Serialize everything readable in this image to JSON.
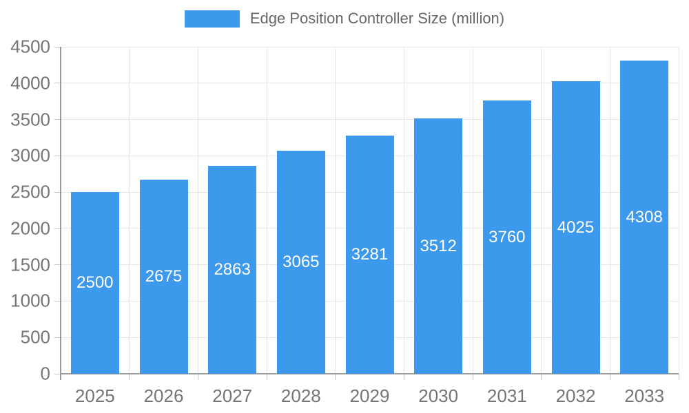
{
  "legend": {
    "label": "Edge Position Controller Size (million)",
    "swatch_color": "#3C99EC"
  },
  "chart_data": {
    "type": "bar",
    "title": "Edge Position Controller Size (million)",
    "categories": [
      "2025",
      "2026",
      "2027",
      "2028",
      "2029",
      "2030",
      "2031",
      "2032",
      "2033"
    ],
    "values": [
      2500,
      2675,
      2863,
      3065,
      3281,
      3512,
      3760,
      4025,
      4308
    ],
    "value_labels": [
      "2500",
      "2675",
      "2863",
      "3065",
      "3281",
      "3512",
      "3760",
      "4025",
      "4308"
    ],
    "xlabel": "",
    "ylabel": "",
    "ylim": [
      0,
      4500
    ],
    "yticks": [
      0,
      500,
      1000,
      1500,
      2000,
      2500,
      3000,
      3500,
      4000,
      4500
    ],
    "ytick_labels": [
      "0",
      "500",
      "1000",
      "1500",
      "2000",
      "2500",
      "3000",
      "3500",
      "4000",
      "4500"
    ],
    "grid": "horizontal-and-vertical",
    "legend_position": "top-center",
    "colors": {
      "bar": "#3C99EC",
      "value_label": "#ffffff",
      "axis_label": "#757575",
      "legend_text": "#666666",
      "gridline": "#e5e5e5",
      "axis_line": "#9a9a9a",
      "background": "#ffffff"
    }
  }
}
